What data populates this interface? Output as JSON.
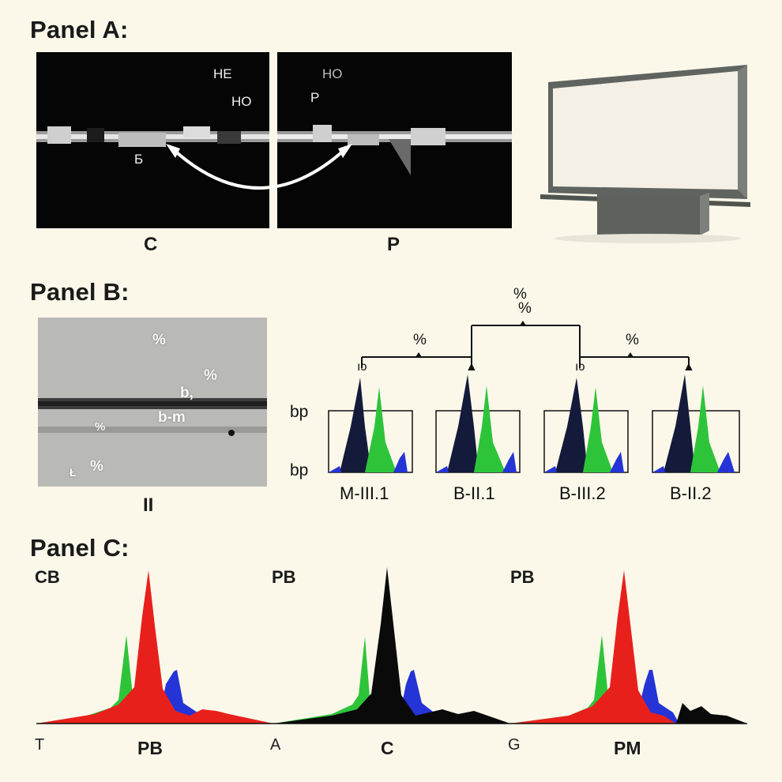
{
  "panel_a": {
    "title": "Panel A:",
    "gel_left_texts": [
      "HE",
      "HO",
      "Б"
    ],
    "gel_right_texts": [
      "HO",
      "P"
    ],
    "label_left": "C",
    "label_right": "P"
  },
  "panel_b": {
    "title": "Panel B:",
    "blot_texts": [
      "%",
      "%",
      "b,",
      "b-m",
      "%",
      "%",
      "Ł"
    ],
    "blot_label": "II",
    "pedigree": {
      "top_label_1": "%",
      "top_label_2": "%",
      "left_label": "%",
      "right_label": "%",
      "leaf_marks": [
        "ıɔ",
        "▲",
        "ıɔ",
        "▲"
      ]
    },
    "axis_labels": [
      "bp",
      "bp"
    ],
    "samples": [
      "M-III.1",
      "B-II.1",
      "B-III.2",
      "B-II.2"
    ]
  },
  "panel_c": {
    "title": "Panel C:",
    "traces": [
      {
        "title": "CB",
        "base": "T",
        "label": "PB"
      },
      {
        "title": "PB",
        "base": "A",
        "label": "C"
      },
      {
        "title": "PB",
        "base": "G",
        "label": "PM"
      }
    ]
  },
  "colors": {
    "background": "#fbf8ea",
    "red": "#e8201c",
    "green": "#2ec43a",
    "blue": "#2434d6",
    "navy": "#141a3a",
    "black": "#0a0a0a"
  }
}
